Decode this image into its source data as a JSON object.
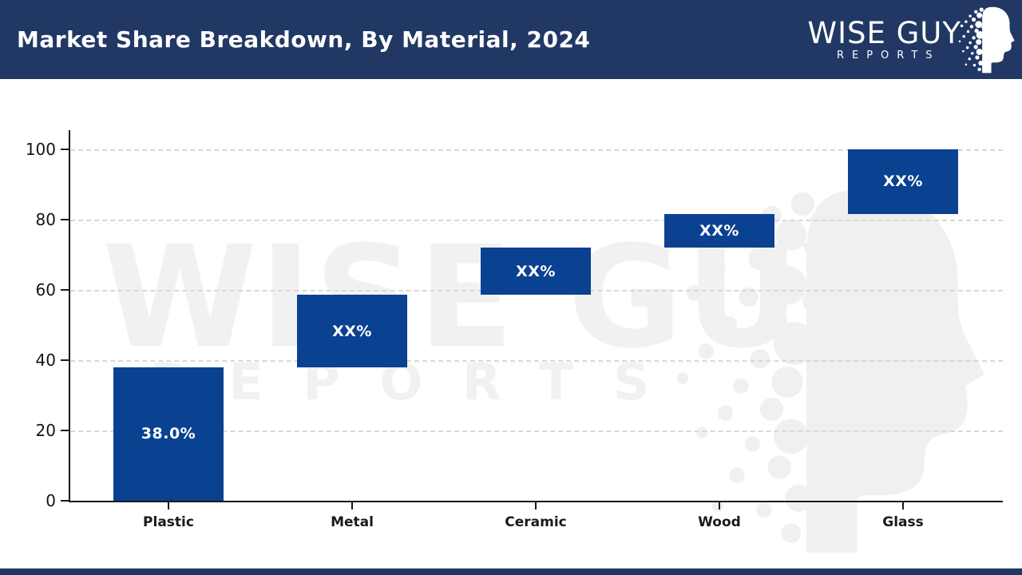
{
  "header": {
    "title": "Market Share Breakdown, By Material, 2024",
    "logo": {
      "wordmark": "WISE GUY",
      "subtext": "REPORTS"
    }
  },
  "watermark": {
    "wordmark": "WISE GUY",
    "subtext": "REPORTS"
  },
  "chart_data": {
    "type": "bar",
    "subtype": "waterfall",
    "title": "Market Share Breakdown, By Material, 2024",
    "categories": [
      "Plastic",
      "Metal",
      "Ceramic",
      "Wood",
      "Glass"
    ],
    "series": [
      {
        "name": "Market share (%)",
        "segment_start": [
          0,
          38,
          58.5,
          72,
          81.5
        ],
        "segment_end": [
          38,
          58.5,
          72,
          81.5,
          100
        ],
        "labels": [
          "38.0%",
          "XX%",
          "XX%",
          "XX%",
          "XX%"
        ]
      }
    ],
    "xlabel": "",
    "ylabel": "",
    "y_ticks": [
      0,
      20,
      40,
      60,
      80,
      100
    ],
    "ylim": [
      0,
      100
    ],
    "grid": "horizontal-dashed",
    "legend": "none",
    "bar_color": "#0a4191",
    "bar_label_color": "#ffffff"
  },
  "colors": {
    "header_bg": "#213864",
    "footer_bg": "#213864",
    "bar": "#0a4191",
    "grid": "#d8d8d8",
    "axis": "#1a1a1a",
    "watermark_text": "#f1f1f1"
  }
}
